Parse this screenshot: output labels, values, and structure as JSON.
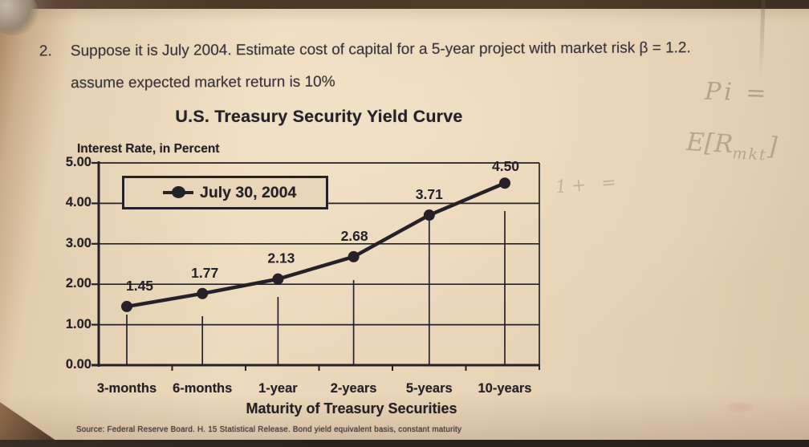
{
  "colors": {
    "paper": "#e9d6b9",
    "ink": "#262126",
    "pencil": "#967a5d"
  },
  "question": {
    "number": "2.",
    "line1": "Suppose it is July 2004. Estimate cost of capital for a 5-year project with market risk β = 1.2.",
    "line2": "assume expected market return is 10%"
  },
  "handwriting": {
    "note1": "Pi =",
    "note2_pre": "E[R",
    "note2_sub": "mkt",
    "note2_post": "]",
    "note3": "1+ ="
  },
  "chart": {
    "title": "U.S. Treasury Security Yield Curve",
    "y_axis_title": "Interest Rate, in Percent",
    "x_axis_title": "Maturity of Treasury Securities",
    "legend_label": "July 30, 2004",
    "legend_marker": "line-with-filled-circle",
    "source": "Source: Federal Reserve Board. H. 15 Statistical Release. Bond yield equivalent basis, constant maturity"
  },
  "chart_data": {
    "type": "line",
    "title": "U.S. Treasury Security Yield Curve",
    "xlabel": "Maturity of Treasury Securities",
    "ylabel": "Interest Rate, in Percent",
    "categories": [
      "3-months",
      "6-months",
      "1-year",
      "2-years",
      "5-years",
      "10-years"
    ],
    "series": [
      {
        "name": "July 30, 2004",
        "values": [
          1.45,
          1.77,
          2.13,
          2.68,
          3.71,
          4.5
        ]
      }
    ],
    "data_labels": [
      "1.45",
      "1.77",
      "2.13",
      "2.68",
      "3.71",
      "4.50"
    ],
    "ylim": [
      0,
      5
    ],
    "yticks": [
      "0.00",
      "1.00",
      "2.00",
      "3.00",
      "4.00",
      "5.00"
    ],
    "grid": true,
    "legend_position": "inside-top-left",
    "marker": "filled-circle"
  }
}
